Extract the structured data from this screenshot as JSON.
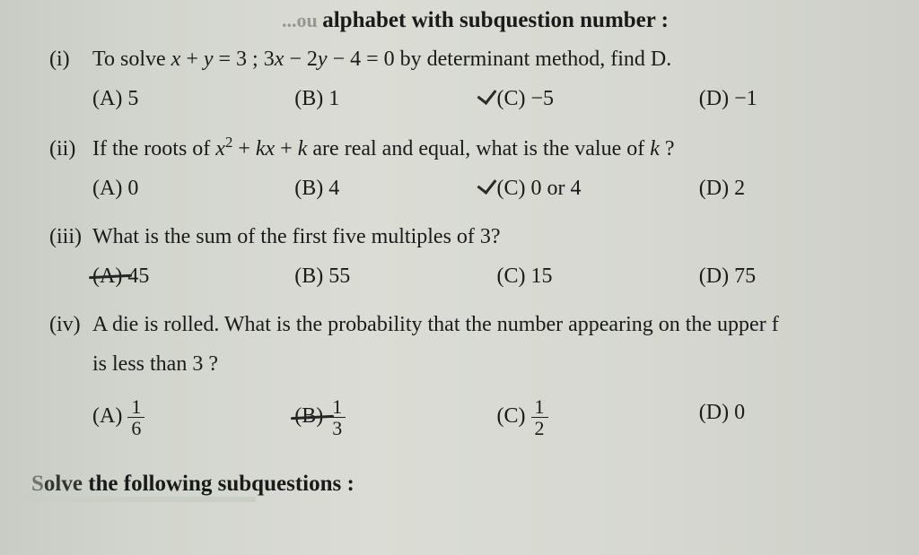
{
  "header_partial": "alphabet with subquestion number :",
  "questions": [
    {
      "num": "(i)",
      "body": "To solve <span class='it'>x</span> + <span class='it'>y</span> = 3 ; 3<span class='it'>x</span> − 2<span class='it'>y</span> − 4 = 0 by determinant method, find D.",
      "options": {
        "a": "(A) 5",
        "b": "(B) 1",
        "c": "(C) −5",
        "d": "(D) −1"
      }
    },
    {
      "num": "(ii)",
      "body": "If the roots of <span class='it'>x</span><sup>2</sup> + <span class='it'>kx</span> + <span class='it'>k</span> are real and equal, what is the value of <span class='it'>k</span> ?",
      "options": {
        "a": "(A) 0",
        "b": "(B) 4",
        "c": "(C) 0 or 4",
        "d": "(D) 2"
      }
    },
    {
      "num": "(iii)",
      "body": "What is the sum of the first five multiples of 3?",
      "options": {
        "a": "(A) 45",
        "b": "(B) 55",
        "c": "(C) 15",
        "d": "(D) 75"
      }
    },
    {
      "num": "(iv)",
      "body_line1": "A die is rolled. What is the probability that the number appearing on the upper f",
      "body_line2": "is less than 3 ?",
      "options": {
        "a_num": "1",
        "a_den": "6",
        "b_num": "1",
        "b_den": "3",
        "c_num": "1",
        "c_den": "2",
        "d": "(D) 0"
      }
    }
  ],
  "footer_partial": "Solve the following subquestions :",
  "colors": {
    "text": "#1a1a1a",
    "bg_light": "#dadcd5",
    "bg_dark": "#c8ccc5"
  },
  "fontsize_body": 24,
  "fontsize_header": 25
}
